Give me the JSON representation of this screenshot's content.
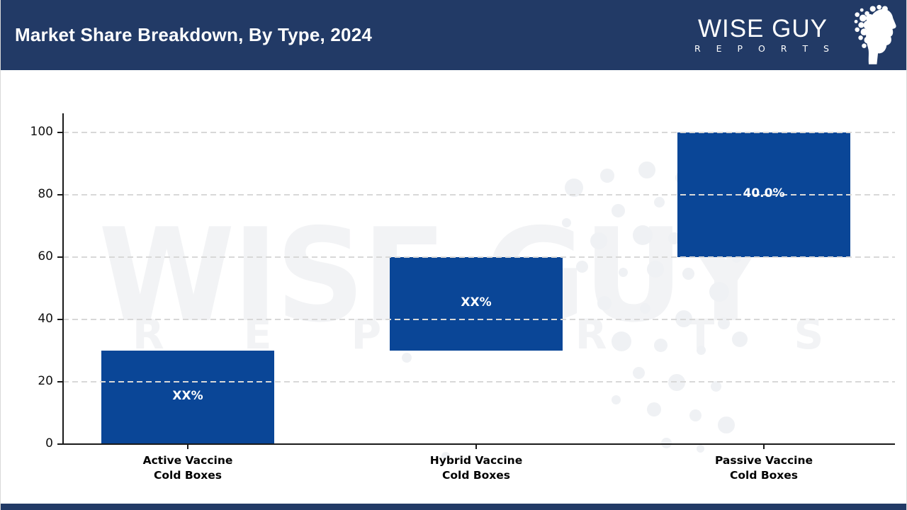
{
  "header": {
    "title": "Market Share Breakdown, By Type, 2024",
    "bg_color": "#223a66",
    "logo": {
      "wordmark": "WISE GUY",
      "sub": "R E P O R T S",
      "head_icon": "dotted-head-profile"
    }
  },
  "watermark": {
    "text": "WISE GUY",
    "sub": "R E P O R T S",
    "color": "#f2f3f5"
  },
  "chart_data": {
    "type": "bar",
    "subtype": "floating-stacked-segments",
    "title": "Market Share Breakdown, By Type, 2024",
    "categories": [
      [
        "Active Vaccine",
        "Cold Boxes"
      ],
      [
        "Hybrid Vaccine",
        "Cold Boxes"
      ],
      [
        "Passive Vaccine",
        "Cold Boxes"
      ]
    ],
    "bars": [
      {
        "category": "Active Vaccine Cold Boxes",
        "start": 0,
        "end": 30,
        "value_label": "XX%"
      },
      {
        "category": "Hybrid Vaccine Cold Boxes",
        "start": 30,
        "end": 60,
        "value_label": "XX%"
      },
      {
        "category": "Passive Vaccine Cold Boxes",
        "start": 60,
        "end": 100,
        "value_label": "40.0%"
      }
    ],
    "xlabel": "",
    "ylabel": "",
    "ylim": [
      0,
      100
    ],
    "yticks": [
      0,
      20,
      40,
      60,
      80,
      100
    ],
    "grid": "horizontal dashed, drawn over bars",
    "legend": "none",
    "bar_color": "#0a4697",
    "bar_label_color": "#ffffff",
    "axis_color": "#1a1a1a",
    "gridline_color": "#d8d8d8"
  },
  "footer": {
    "bg_color": "#223a66"
  }
}
